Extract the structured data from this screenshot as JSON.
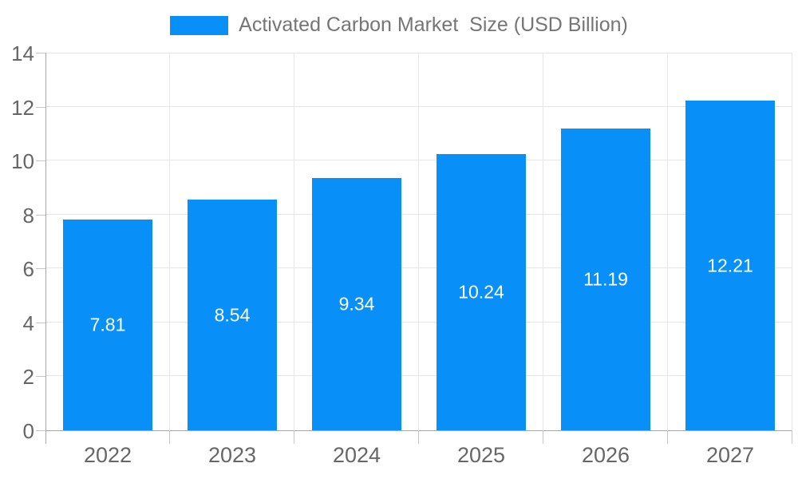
{
  "chart_data": {
    "type": "bar",
    "title": "",
    "xlabel": "",
    "ylabel": "",
    "categories": [
      "2022",
      "2023",
      "2024",
      "2025",
      "2026",
      "2027"
    ],
    "series": [
      {
        "name": "Activated Carbon Market  Size (USD Billion)",
        "values": [
          7.81,
          8.54,
          9.34,
          10.24,
          11.19,
          12.21
        ]
      }
    ],
    "value_labels": [
      "7.81",
      "8.54",
      "9.34",
      "10.24",
      "11.19",
      "12.21"
    ],
    "ylim": [
      0,
      14
    ],
    "yticks": [
      0,
      2,
      4,
      6,
      8,
      10,
      12,
      14
    ],
    "grid": true,
    "legend_position": "top",
    "colors": {
      "bar": "#0990F8",
      "grid": "#E6E6E6",
      "axis": "#A8A8A8",
      "tick": "#C6C6C6",
      "axis_label": "#666666",
      "legend_text": "#757575",
      "value_label": "#FFFFFF",
      "background": "#FFFFFF"
    }
  }
}
